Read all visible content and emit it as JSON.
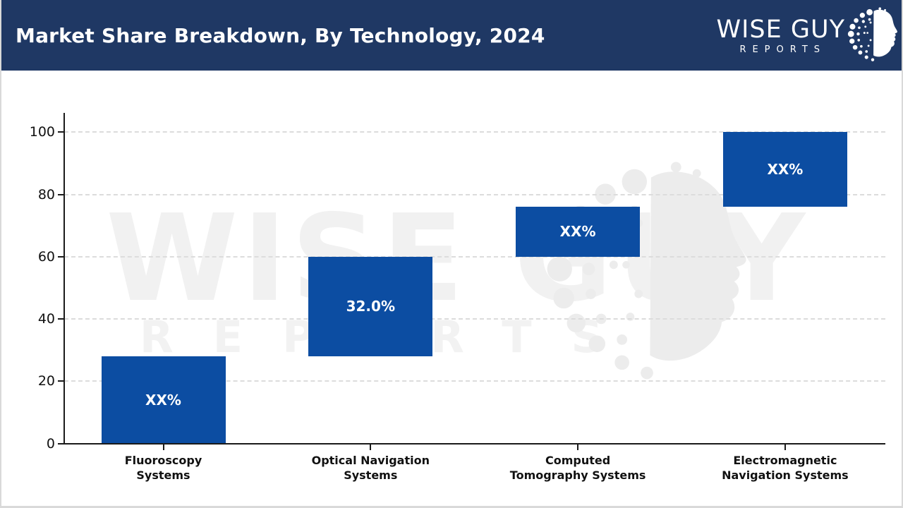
{
  "header": {
    "title": "Market Share Breakdown, By Technology, 2024",
    "background_color": "#1f3864",
    "logo": {
      "line1": "WISE GUY",
      "line2": "REPORTS"
    }
  },
  "watermark": {
    "line1": "WISE GUY",
    "line2": "REPORTS"
  },
  "chart_data": {
    "type": "bar",
    "subtype": "waterfall",
    "title": "Market Share Breakdown, By Technology, 2024",
    "xlabel": "",
    "ylabel": "",
    "ylim": [
      0,
      107
    ],
    "yticks": [
      0,
      20,
      40,
      60,
      80,
      100
    ],
    "grid": "horizontal dashed, light gray",
    "legend": "none",
    "bar_color": "#0c4da2",
    "bars": [
      {
        "category_lines": [
          "Fluoroscopy",
          "Systems"
        ],
        "start": 0,
        "end": 28,
        "label": "XX%"
      },
      {
        "category_lines": [
          "Optical Navigation",
          "Systems"
        ],
        "start": 28,
        "end": 60,
        "label": "32.0%"
      },
      {
        "category_lines": [
          "Computed",
          "Tomography Systems"
        ],
        "start": 60,
        "end": 76,
        "label": "XX%"
      },
      {
        "category_lines": [
          "Electromagnetic",
          "Navigation Systems"
        ],
        "start": 76,
        "end": 100,
        "label": "XX%"
      }
    ]
  }
}
